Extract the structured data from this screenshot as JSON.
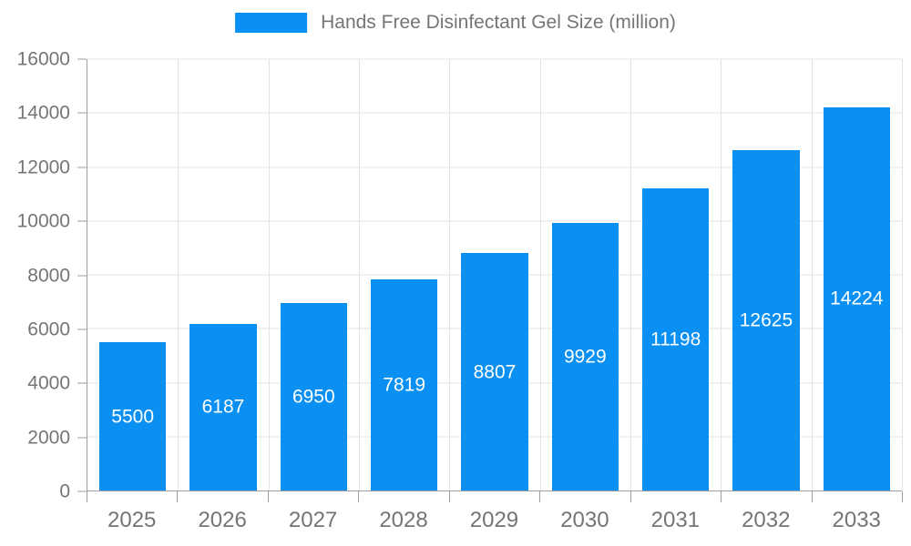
{
  "chart_data": {
    "type": "bar",
    "categories": [
      "2025",
      "2026",
      "2027",
      "2028",
      "2029",
      "2030",
      "2031",
      "2032",
      "2033"
    ],
    "values": [
      5500,
      6187,
      6950,
      7819,
      8807,
      9929,
      11198,
      12625,
      14224
    ],
    "series_name": "Hands Free Disinfectant Gel Size (million)",
    "title": "",
    "xlabel": "",
    "ylabel": "",
    "ylim": [
      0,
      16000
    ],
    "ytick_step": 2000,
    "grid": true,
    "legend_position": "top",
    "bar_labels_visible": true,
    "colors": {
      "bar": "#0a8ff2",
      "bar_label": "#ffffff",
      "axis_text": "#757575",
      "axis_line": "#9e9e9e",
      "gridline": "#e3e3e3",
      "legend_text": "#757575",
      "background": "#ffffff"
    }
  }
}
